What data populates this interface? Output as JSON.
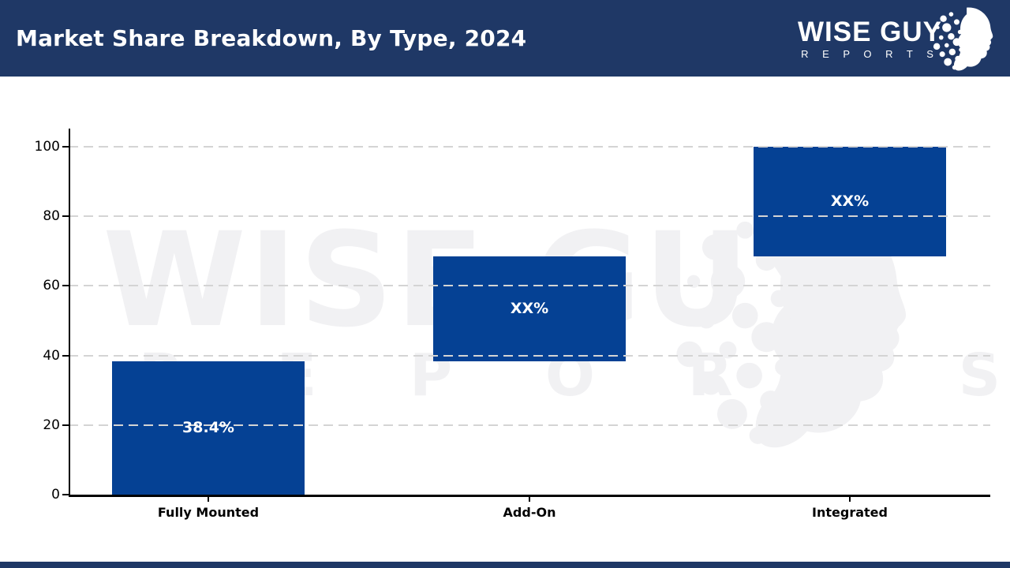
{
  "header": {
    "title": "Market Share Breakdown, By Type, 2024",
    "logo_line1": "WISE GUY",
    "logo_line2": "R E P O R T S"
  },
  "watermark": {
    "line1": "WISE GUY",
    "line2": "R E P O R T S"
  },
  "colors": {
    "header_bg": "#1f3866",
    "footer_bg": "#1f3866",
    "bar_blue": "#054194",
    "gridline": "#d4d4d4",
    "watermark_gray": "#f1f1f3",
    "bar_label_white": "#ffffff"
  },
  "chart_data": {
    "type": "bar",
    "subtype": "floating-waterfall",
    "title": "Market Share Breakdown, By Type, 2024",
    "categories": [
      "Fully Mounted",
      "Add-On",
      "Integrated"
    ],
    "bars": [
      {
        "category": "Fully Mounted",
        "from": 0,
        "to": 38.4,
        "label": "38.4%"
      },
      {
        "category": "Add-On",
        "from": 38.4,
        "to": 68.5,
        "label": "XX%"
      },
      {
        "category": "Integrated",
        "from": 68.5,
        "to": 100,
        "label": "XX%"
      }
    ],
    "y_ticks": [
      0,
      20,
      40,
      60,
      80,
      100
    ],
    "ylim": [
      0,
      105
    ],
    "xlabel": "",
    "ylabel": "",
    "grid": "dashed-horizontal",
    "legend": "none",
    "bar_color": "#054194",
    "label_color": "#ffffff"
  }
}
